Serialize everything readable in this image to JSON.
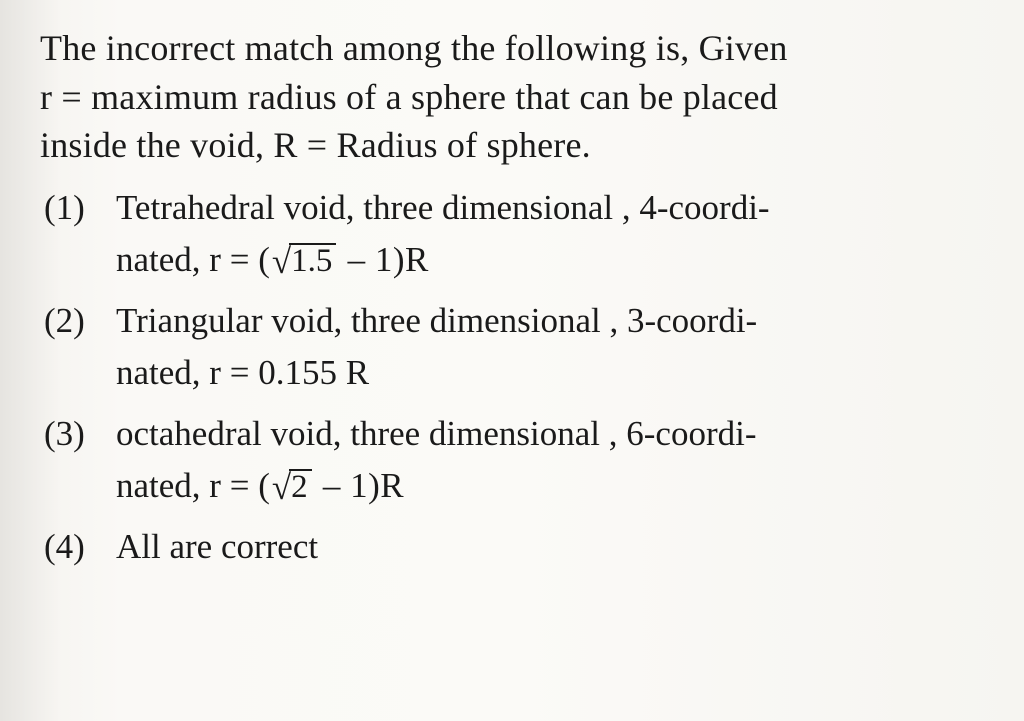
{
  "doc": {
    "background_color": "#faf9f6",
    "text_color": "#1a1a1a",
    "font_family": "Times New Roman",
    "stem_fontsize_pt": 27,
    "option_fontsize_pt": 26
  },
  "question": {
    "stem_line1": "The incorrect match among the following is, Given",
    "stem_line2": "r = maximum radius of a sphere that can be placed",
    "stem_line3": "inside the void, R = Radius of sphere."
  },
  "options": [
    {
      "num": "(1)",
      "line1_pre": "Tetrahedral void, three dimensional , 4-coordi-",
      "line2_pre": "nated, r = (",
      "sqrt_radicand": "1.5",
      "line2_post": " – 1)R"
    },
    {
      "num": "(2)",
      "line1_pre": "Triangular void, three dimensional , 3-coordi-",
      "line2_plain": "nated, r = 0.155 R"
    },
    {
      "num": "(3)",
      "line1_pre": "octahedral void, three dimensional , 6-coordi-",
      "line2_pre": "nated, r = (",
      "sqrt_radicand": "2",
      "line2_post": " – 1)R"
    },
    {
      "num": "(4)",
      "line1_pre": "All are correct"
    }
  ]
}
